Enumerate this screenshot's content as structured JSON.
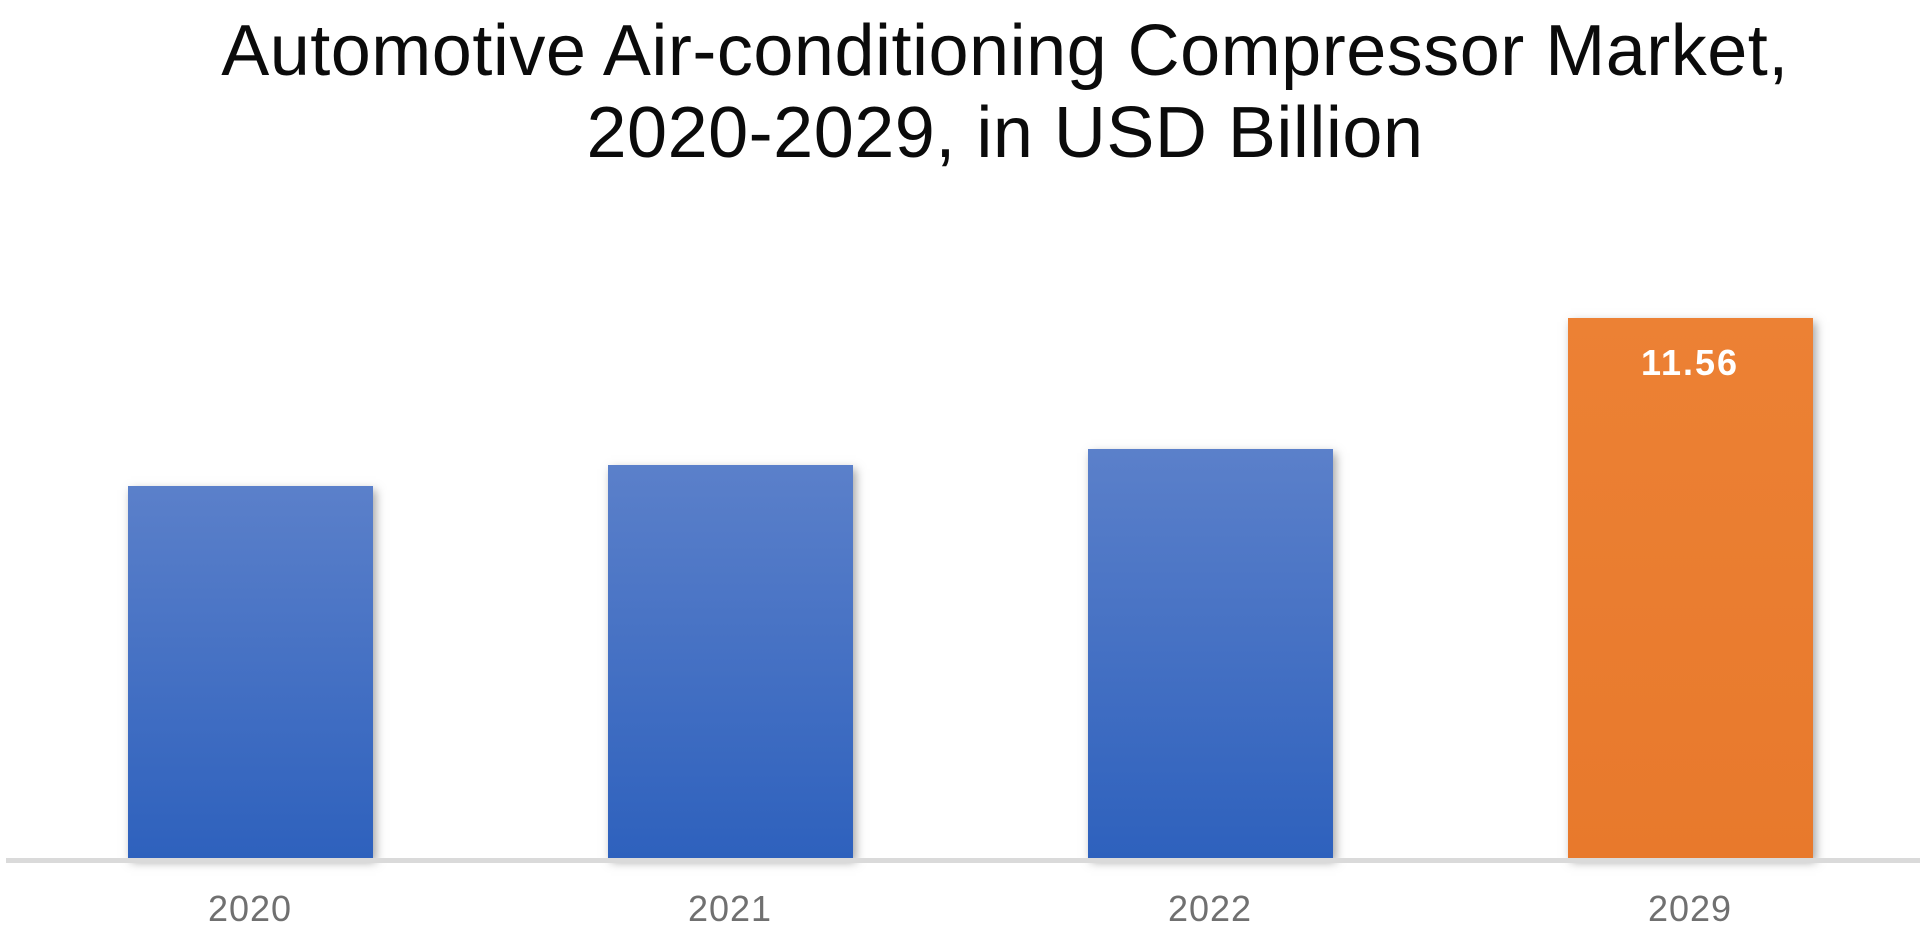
{
  "chart_data": {
    "type": "bar",
    "title": "Automotive Air-conditioning Compressor Market, 2020-2029, in USD Billion",
    "title_lines": [
      "Automotive Air-conditioning Compressor Market,",
      "2020-2029, in USD Billion"
    ],
    "categories": [
      "2020",
      "2021",
      "2022",
      "2029"
    ],
    "values": [
      7.96,
      8.41,
      8.76,
      11.56
    ],
    "values_note": "Only the 2029 bar carries a printed data label (11.56); other values are estimated from bar heights",
    "data_labels": [
      "",
      "",
      "",
      "11.56"
    ],
    "highlighted_category": "2029",
    "highlighted_index": 3,
    "xlabel": "",
    "ylabel": "",
    "ylim": [
      0,
      12.4
    ],
    "grid": false,
    "legend": false,
    "y_axis_visible": false,
    "colors": {
      "bar_blue_top": "#5B80CA",
      "bar_blue_bottom": "#2E61BD",
      "bar_orange_top": "#EC8134",
      "bar_orange_bottom": "#E8792C",
      "axis_line": "#DADADA",
      "category_label": "#707070",
      "data_label": "#FFFFFF",
      "title_text": "#0B0B0B"
    }
  }
}
